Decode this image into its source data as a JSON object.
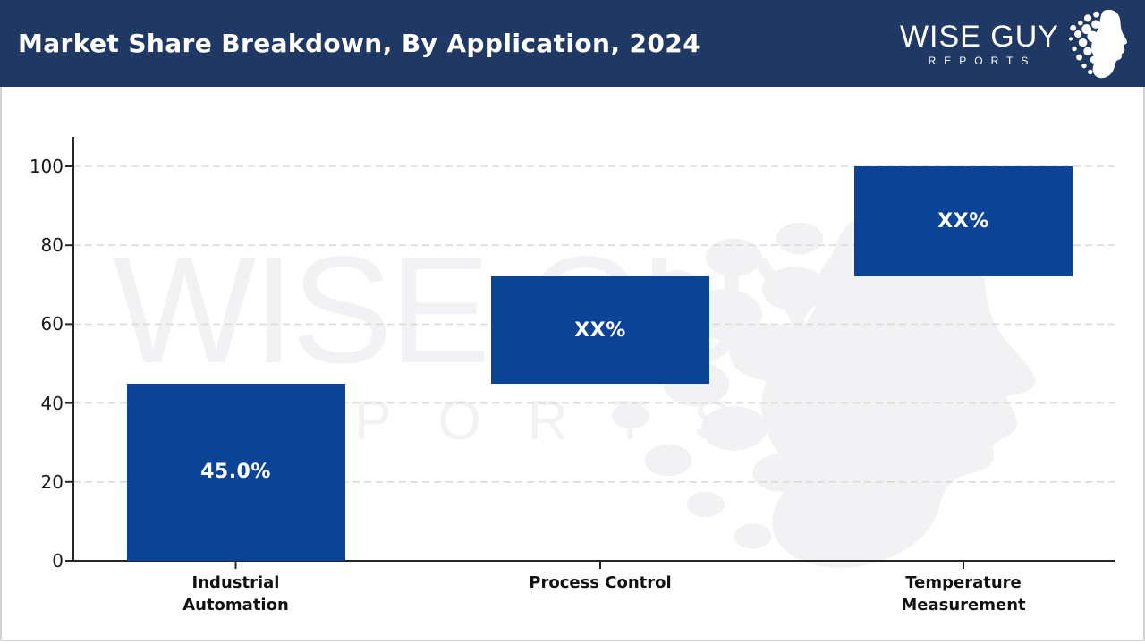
{
  "header": {
    "title": "Market Share Breakdown, By Application, 2024",
    "logo": {
      "name": "WISE GUY",
      "sub": "REPORTS"
    }
  },
  "watermark": {
    "line1": "WISE GUY",
    "line2": "REPORTS"
  },
  "colors": {
    "header_bg": "#1F3864",
    "bar": "#0B4397",
    "bar_label": "#FFFFFF",
    "grid": "#DBDBDB",
    "axis": "#262626",
    "tick_label": "#1A1A1A",
    "watermark": "#F2F2F4",
    "frame_border": "#D2D2D2",
    "page_bg": "#FFFFFF"
  },
  "chart_data": {
    "type": "bar",
    "subtype": "stepped-waterfall",
    "title": "Market Share Breakdown, By Application, 2024",
    "categories": [
      "Industrial Automation",
      "Process Control",
      "Temperature Measurement"
    ],
    "segments": [
      {
        "category_lines": [
          "Industrial",
          "Automation"
        ],
        "start": 0,
        "end": 45,
        "value": 45.0,
        "label": "45.0%"
      },
      {
        "category_lines": [
          "Process Control"
        ],
        "start": 45,
        "end": 72,
        "value": 27.0,
        "label": "XX%"
      },
      {
        "category_lines": [
          "Temperature",
          "Measurement"
        ],
        "start": 72,
        "end": 100,
        "value": 28.0,
        "label": "XX%"
      }
    ],
    "yticks": [
      0,
      20,
      40,
      60,
      80,
      100
    ],
    "ylim": [
      0,
      107
    ],
    "grid": "horizontal-dashed",
    "legend": null
  }
}
